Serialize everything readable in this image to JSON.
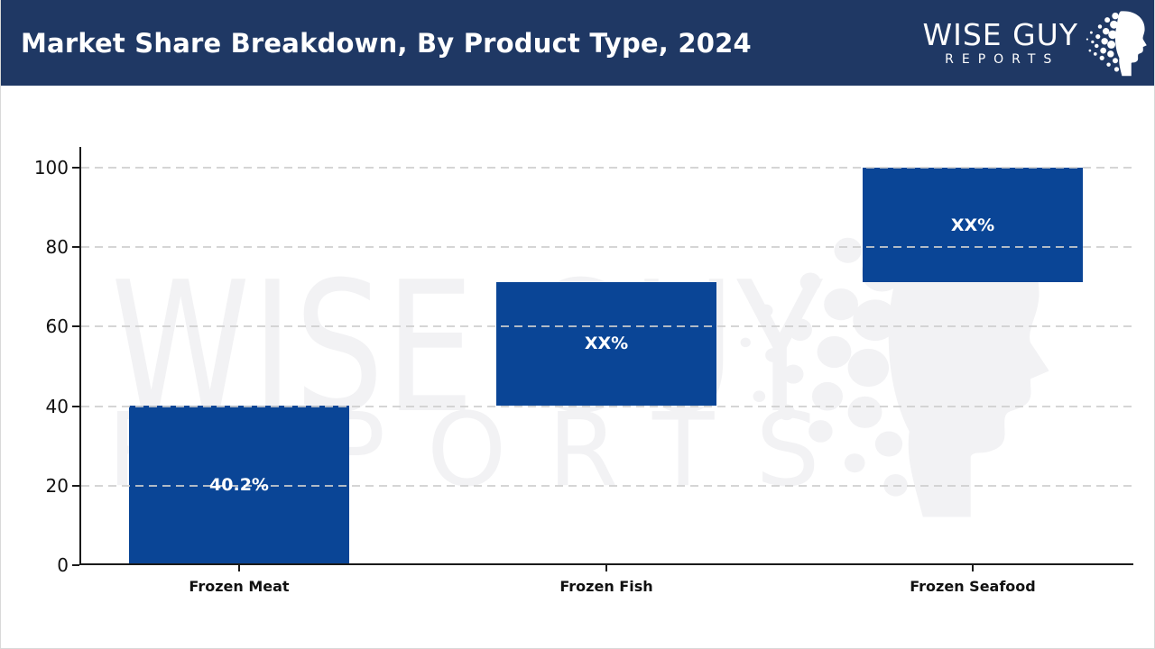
{
  "header": {
    "title": "Market Share Breakdown, By Product Type, 2024",
    "logo": {
      "line1": "WISE GUY",
      "line2": "REPORTS"
    }
  },
  "watermark": {
    "line1": "WISE GUY",
    "line2": "REPORTS"
  },
  "colors": {
    "header_bg": "#1f3864",
    "bar": "#0a4596",
    "axis": "#1a1a1a",
    "gridline": "#d9d9d9",
    "bar_label": "#ffffff",
    "watermark": "#f2f2f4"
  },
  "chart_data": {
    "type": "bar",
    "subtype": "waterfall",
    "title": "Market Share Breakdown, By Product Type, 2024",
    "categories": [
      "Frozen Meat",
      "Frozen Fish",
      "Frozen Seafood"
    ],
    "bars": [
      {
        "category": "Frozen Meat",
        "start": 0,
        "end": 40.2,
        "label": "40.2%"
      },
      {
        "category": "Frozen Fish",
        "start": 40.2,
        "end": 71.2,
        "label": "XX%"
      },
      {
        "category": "Frozen Seafood",
        "start": 71.2,
        "end": 100,
        "label": "XX%"
      }
    ],
    "xlabel": "",
    "ylabel": "",
    "yaxis": {
      "ticks": [
        0,
        20,
        40,
        60,
        80,
        100
      ],
      "min": 0,
      "max": 105
    },
    "grid": "horizontal-dashed",
    "legend": "none",
    "units": "%"
  }
}
